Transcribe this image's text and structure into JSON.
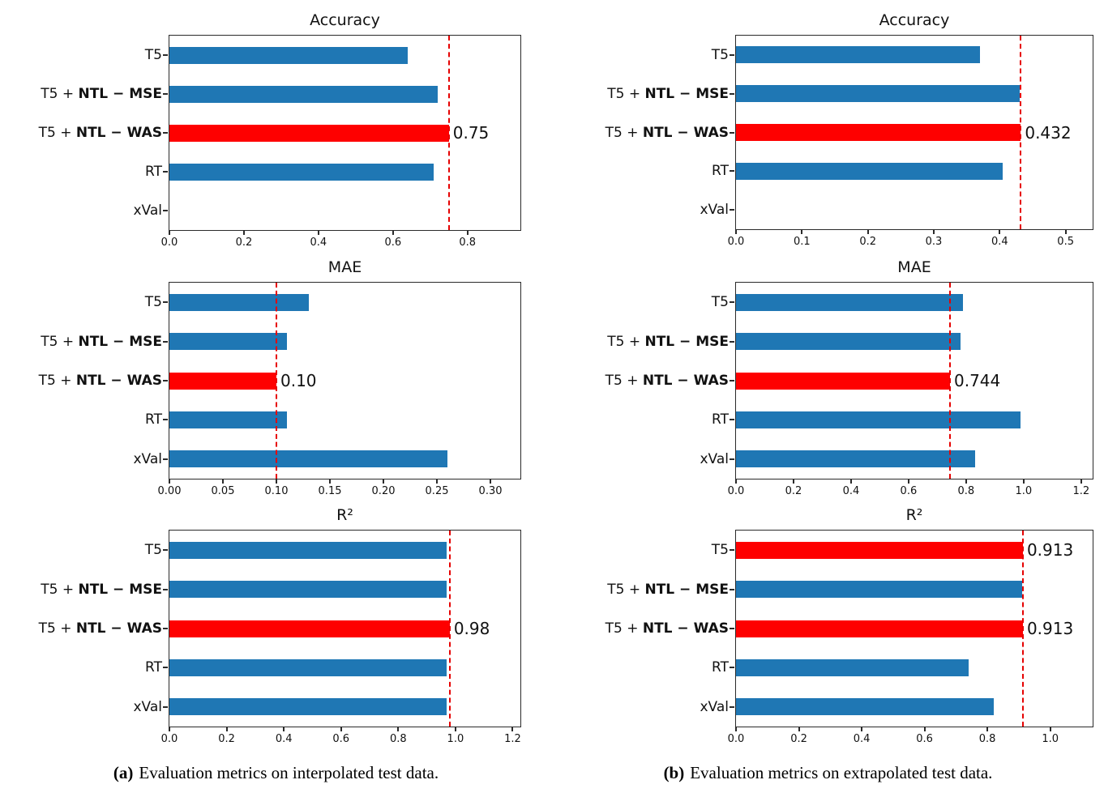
{
  "colors": {
    "bar_blue": "#1f77b4",
    "bar_red": "#fe0000",
    "ref_line_red": "#e60000",
    "spine": "#2a2a2a"
  },
  "categories": [
    {
      "key": "t5",
      "segments": [
        {
          "text": "T5",
          "bold": false
        }
      ]
    },
    {
      "key": "t5-ntl-mse",
      "segments": [
        {
          "text": "T5 + ",
          "bold": false
        },
        {
          "text": "NTL − MSE",
          "bold": true
        }
      ]
    },
    {
      "key": "t5-ntl-was",
      "segments": [
        {
          "text": "T5 + ",
          "bold": false
        },
        {
          "text": "NTL − WAS",
          "bold": true
        }
      ]
    },
    {
      "key": "rt",
      "segments": [
        {
          "text": "RT",
          "bold": false
        }
      ]
    },
    {
      "key": "xval",
      "segments": [
        {
          "text": "xVal",
          "bold": false
        }
      ]
    }
  ],
  "chart_data": [
    {
      "id": "accuracy-interpolated",
      "type": "bar",
      "orientation": "horizontal",
      "panel": "a",
      "title": "Accuracy",
      "categories": [
        "T5",
        "T5 + NTL − MSE",
        "T5 + NTL − WAS",
        "RT",
        "xVal"
      ],
      "values": [
        0.64,
        0.72,
        0.75,
        0.71,
        0.0
      ],
      "highlight_indices": [
        2
      ],
      "bar_labels": [
        "",
        "",
        "0.75",
        "",
        ""
      ],
      "ref_line": 0.75,
      "xlim": [
        0,
        0.942
      ],
      "xmax": 0.942,
      "xticks": [
        "0.0",
        "0.2",
        "0.4",
        "0.6",
        "0.8"
      ],
      "grid": false,
      "legend": "none"
    },
    {
      "id": "accuracy-extrapolated",
      "type": "bar",
      "orientation": "horizontal",
      "panel": "b",
      "title": "Accuracy",
      "categories": [
        "T5",
        "T5 + NTL − MSE",
        "T5 + NTL − WAS",
        "RT",
        "xVal"
      ],
      "values": [
        0.37,
        0.43,
        0.432,
        0.405,
        0.0
      ],
      "highlight_indices": [
        2
      ],
      "bar_labels": [
        "",
        "",
        "0.432",
        "",
        ""
      ],
      "ref_line": 0.432,
      "xlim": [
        0,
        0.541
      ],
      "xmax": 0.541,
      "xticks": [
        "0.0",
        "0.1",
        "0.2",
        "0.3",
        "0.4",
        "0.5"
      ],
      "grid": false,
      "legend": "none"
    },
    {
      "id": "mae-interpolated",
      "type": "bar",
      "orientation": "horizontal",
      "panel": "a",
      "title": "MAE",
      "categories": [
        "T5",
        "T5 + NTL − MSE",
        "T5 + NTL − WAS",
        "RT",
        "xVal"
      ],
      "values": [
        0.13,
        0.11,
        0.1,
        0.11,
        0.26
      ],
      "highlight_indices": [
        2
      ],
      "bar_labels": [
        "",
        "",
        "0.10",
        "",
        ""
      ],
      "ref_line": 0.1,
      "xlim": [
        0,
        0.328
      ],
      "xmax": 0.328,
      "xticks": [
        "0.00",
        "0.05",
        "0.10",
        "0.15",
        "0.20",
        "0.25",
        "0.30"
      ],
      "grid": false,
      "legend": "none"
    },
    {
      "id": "mae-extrapolated",
      "type": "bar",
      "orientation": "horizontal",
      "panel": "b",
      "title": "MAE",
      "categories": [
        "T5",
        "T5 + NTL − MSE",
        "T5 + NTL − WAS",
        "RT",
        "xVal"
      ],
      "values": [
        0.79,
        0.78,
        0.744,
        0.99,
        0.83
      ],
      "highlight_indices": [
        2
      ],
      "bar_labels": [
        "",
        "",
        "0.744",
        "",
        ""
      ],
      "ref_line": 0.744,
      "xlim": [
        0,
        1.24
      ],
      "xmax": 1.24,
      "xticks": [
        "0.0",
        "0.2",
        "0.4",
        "0.6",
        "0.8",
        "1.0",
        "1.2"
      ],
      "grid": false,
      "legend": "none"
    },
    {
      "id": "r2-interpolated",
      "type": "bar",
      "orientation": "horizontal",
      "panel": "a",
      "title": "R²",
      "categories": [
        "T5",
        "T5 + NTL − MSE",
        "T5 + NTL − WAS",
        "RT",
        "xVal"
      ],
      "values": [
        0.97,
        0.97,
        0.98,
        0.97,
        0.97
      ],
      "highlight_indices": [
        2
      ],
      "bar_labels": [
        "",
        "",
        "0.98",
        "",
        ""
      ],
      "ref_line": 0.98,
      "xlim": [
        0,
        1.227
      ],
      "xmax": 1.227,
      "xticks": [
        "0.0",
        "0.2",
        "0.4",
        "0.6",
        "0.8",
        "1.0",
        "1.2"
      ],
      "grid": false,
      "legend": "none"
    },
    {
      "id": "r2-extrapolated",
      "type": "bar",
      "orientation": "horizontal",
      "panel": "b",
      "title": "R²",
      "categories": [
        "T5",
        "T5 + NTL − MSE",
        "T5 + NTL − WAS",
        "RT",
        "xVal"
      ],
      "values": [
        0.913,
        0.91,
        0.913,
        0.74,
        0.82
      ],
      "highlight_indices": [
        0,
        2
      ],
      "bar_labels": [
        "0.913",
        "",
        "0.913",
        "",
        ""
      ],
      "ref_line": 0.913,
      "xlim": [
        0,
        1.135
      ],
      "xmax": 1.135,
      "xticks": [
        "0.0",
        "0.2",
        "0.4",
        "0.6",
        "0.8",
        "1.0"
      ],
      "grid": false,
      "legend": "none"
    }
  ],
  "captions": [
    {
      "label": "(a)",
      "text": "Evaluation metrics on interpolated test data."
    },
    {
      "label": "(b)",
      "text": "Evaluation metrics on extrapolated test data."
    }
  ]
}
